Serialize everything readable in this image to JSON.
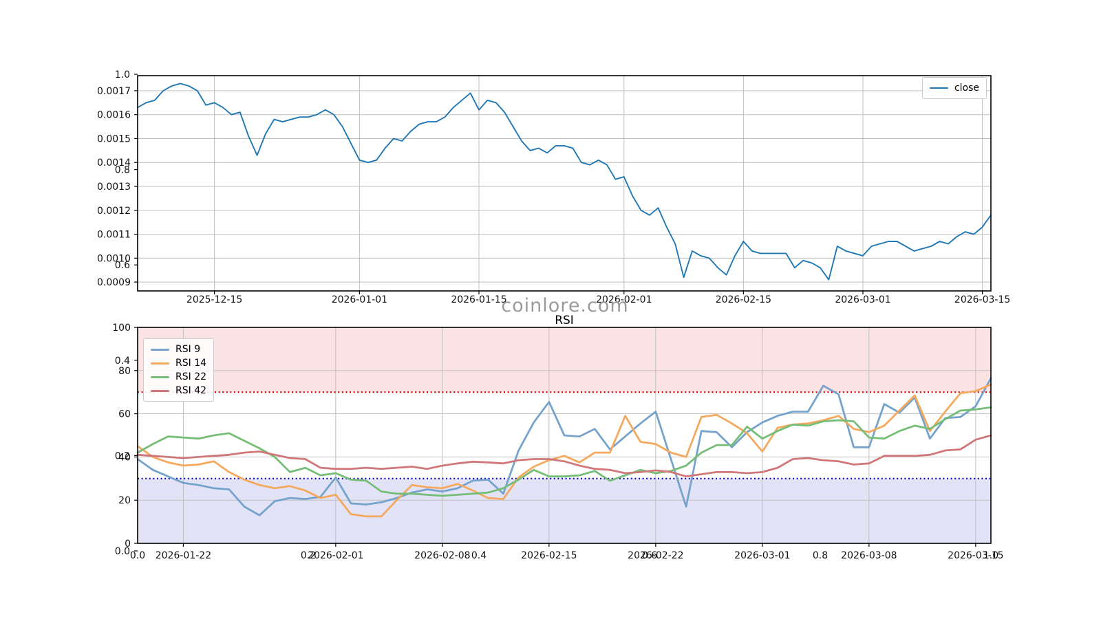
{
  "watermark": "coinlore.com",
  "colors": {
    "close_line": "#1f77b4",
    "rsi9": "#76a3cc",
    "rsi14": "#f4a95e",
    "rsi22": "#76bd77",
    "rsi42": "#d0777a",
    "overbought_dotted": "#d40000",
    "oversold_dotted": "#0000cc",
    "overbought_band": "#fbe3e4",
    "oversold_band": "#e3e3f8",
    "grid": "#bfbfbf"
  },
  "hidden_axis": {
    "x_labels": [
      "0.0",
      "0.2",
      "0.4",
      "0.6",
      "0.8",
      "1.0"
    ],
    "y_labels": [
      "1.0",
      "0.8",
      "0.6",
      "0.4",
      "0.2",
      "0.0"
    ]
  },
  "chart_data": [
    {
      "type": "line",
      "name": "price",
      "title": "",
      "legend_position": "upper right",
      "grid": true,
      "xlim": [
        0,
        100
      ],
      "ylim": [
        0.000863,
        0.001763
      ],
      "x_ticks": [
        {
          "label": "2025-12-15",
          "index": 9
        },
        {
          "label": "2026-01-01",
          "index": 26
        },
        {
          "label": "2026-01-15",
          "index": 40
        },
        {
          "label": "2026-02-01",
          "index": 57
        },
        {
          "label": "2026-02-15",
          "index": 71
        },
        {
          "label": "2026-03-01",
          "index": 85
        },
        {
          "label": "2026-03-15",
          "index": 99
        }
      ],
      "y_ticks": [
        {
          "label": "0.0009",
          "value": 0.0009
        },
        {
          "label": "0.0010",
          "value": 0.001
        },
        {
          "label": "0.0011",
          "value": 0.0011
        },
        {
          "label": "0.0012",
          "value": 0.0012
        },
        {
          "label": "0.0013",
          "value": 0.0013
        },
        {
          "label": "0.0014",
          "value": 0.0014
        },
        {
          "label": "0.0015",
          "value": 0.0015
        },
        {
          "label": "0.0016",
          "value": 0.0016
        },
        {
          "label": "0.0017",
          "value": 0.0017
        }
      ],
      "legend": [
        {
          "label": "close",
          "color": "#1f77b4"
        }
      ],
      "series": [
        {
          "name": "close",
          "data_name": "close-line",
          "color": "#1f77b4",
          "width": 1.9,
          "values": [
            0.00163,
            0.00165,
            0.00166,
            0.0017,
            0.00172,
            0.00173,
            0.00172,
            0.0017,
            0.00164,
            0.00165,
            0.00163,
            0.0016,
            0.00161,
            0.00151,
            0.00143,
            0.00152,
            0.00158,
            0.00157,
            0.00158,
            0.00159,
            0.00159,
            0.0016,
            0.00162,
            0.0016,
            0.00155,
            0.00148,
            0.00141,
            0.0014,
            0.00141,
            0.00146,
            0.0015,
            0.00149,
            0.00153,
            0.00156,
            0.00157,
            0.00157,
            0.00159,
            0.00163,
            0.00166,
            0.00169,
            0.00162,
            0.00166,
            0.00165,
            0.00161,
            0.00155,
            0.00149,
            0.00145,
            0.00146,
            0.00144,
            0.00147,
            0.00147,
            0.00146,
            0.0014,
            0.00139,
            0.00141,
            0.00139,
            0.00133,
            0.00134,
            0.00126,
            0.0012,
            0.00118,
            0.00121,
            0.00113,
            0.00106,
            0.00092,
            0.00103,
            0.00101,
            0.001,
            0.00096,
            0.00093,
            0.00101,
            0.00107,
            0.00103,
            0.00102,
            0.00102,
            0.00102,
            0.00102,
            0.00096,
            0.00099,
            0.00098,
            0.00096,
            0.00091,
            0.00105,
            0.00103,
            0.00102,
            0.00101,
            0.00105,
            0.00106,
            0.00107,
            0.00107,
            0.00105,
            0.00103,
            0.00104,
            0.00105,
            0.00107,
            0.00106,
            0.00109,
            0.00111,
            0.0011,
            0.00113,
            0.00118
          ]
        }
      ]
    },
    {
      "type": "line",
      "name": "rsi",
      "title": "RSI",
      "legend_position": "upper left",
      "grid": true,
      "xlim": [
        0,
        56
      ],
      "ylim": [
        0,
        100
      ],
      "x_ticks": [
        {
          "label": "2026-01-22",
          "index": 3
        },
        {
          "label": "2026-02-01",
          "index": 13
        },
        {
          "label": "2026-02-08",
          "index": 20
        },
        {
          "label": "2026-02-15",
          "index": 27
        },
        {
          "label": "2026-02-22",
          "index": 34
        },
        {
          "label": "2026-03-01",
          "index": 41
        },
        {
          "label": "2026-03-08",
          "index": 48
        },
        {
          "label": "2026-03-15",
          "index": 55
        }
      ],
      "y_ticks": [
        {
          "label": "0",
          "value": 0
        },
        {
          "label": "20",
          "value": 20
        },
        {
          "label": "40",
          "value": 40
        },
        {
          "label": "60",
          "value": 60
        },
        {
          "label": "80",
          "value": 80
        },
        {
          "label": "100",
          "value": 100
        }
      ],
      "bands": [
        {
          "from": 70,
          "to": 100,
          "color": "#fbe3e4",
          "name": "overbought-band"
        },
        {
          "from": 0,
          "to": 30,
          "color": "#e3e3f8",
          "name": "oversold-band"
        }
      ],
      "hlines": [
        {
          "value": 70,
          "color": "#d40000",
          "name": "overbought-threshold-line"
        },
        {
          "value": 30,
          "color": "#0000cc",
          "name": "oversold-threshold-line"
        }
      ],
      "series": [
        {
          "name": "RSI 9",
          "data_name": "rsi-9-line",
          "color": "#76a3cc",
          "width": 2.8,
          "values": [
            39,
            34,
            31,
            28,
            27,
            25.5,
            25,
            17,
            13,
            19.5,
            21,
            20.5,
            21.5,
            30.5,
            18.5,
            18,
            19,
            21,
            23.5,
            25,
            24,
            25.5,
            29,
            29.5,
            23,
            43,
            56,
            65.5,
            50,
            49.5,
            53,
            43.5,
            49.5,
            55.5,
            61,
            39,
            17,
            52,
            51.5,
            44.5,
            51.5,
            56,
            59,
            61,
            61,
            73,
            69,
            44.5,
            44.5,
            64.5,
            60.5,
            67.5,
            48.5,
            58,
            58.5,
            63.5,
            76.5
          ]
        },
        {
          "name": "RSI 14",
          "data_name": "rsi-14-line",
          "color": "#f4a95e",
          "width": 2.8,
          "values": [
            45,
            40,
            37.5,
            36,
            36.5,
            38,
            33,
            29.5,
            27,
            25.5,
            26.5,
            24.5,
            21,
            22.5,
            13.5,
            12.5,
            12.5,
            20,
            27,
            26,
            25.5,
            27.5,
            24.5,
            21,
            20.5,
            30.5,
            35.5,
            38.5,
            40.5,
            37.5,
            42,
            42,
            59,
            47,
            46,
            42,
            40,
            58.5,
            59.5,
            55.5,
            51,
            42.5,
            53.5,
            55,
            55.5,
            57,
            59,
            53,
            51.5,
            54.5,
            61.5,
            68.5,
            52,
            61,
            69.5,
            70.5,
            73.5
          ]
        },
        {
          "name": "RSI 22",
          "data_name": "rsi-22-line",
          "color": "#76bd77",
          "width": 2.8,
          "values": [
            42,
            46,
            49.5,
            49,
            48.5,
            50,
            51,
            47.5,
            44,
            40,
            33,
            35,
            31.5,
            32.5,
            29.5,
            29,
            24,
            23,
            23,
            22.5,
            22,
            22.5,
            23,
            23.5,
            25.5,
            29.5,
            34,
            31,
            31,
            31.5,
            33.5,
            29,
            31.5,
            34,
            32.5,
            33.5,
            36,
            42,
            45.5,
            45.5,
            54,
            48.5,
            52,
            55,
            54.5,
            56.5,
            57,
            56.5,
            49,
            48.5,
            52,
            54.5,
            53,
            57.5,
            61.5,
            62,
            63
          ]
        },
        {
          "name": "RSI 42",
          "data_name": "rsi-42-line",
          "color": "#d0777a",
          "width": 2.8,
          "values": [
            41,
            40.5,
            40,
            39.5,
            40,
            40.5,
            41,
            42,
            42.5,
            41,
            39.5,
            39,
            35,
            34.5,
            34.5,
            35,
            34.5,
            35,
            35.5,
            34.5,
            36,
            37,
            37.8,
            37.5,
            37,
            38.5,
            39,
            39,
            38,
            36,
            34.5,
            34,
            32.5,
            33,
            33.8,
            33,
            31,
            32,
            33,
            33,
            32.5,
            33,
            35,
            39,
            39.5,
            38.5,
            38,
            36.5,
            37,
            40.5,
            40.5,
            40.5,
            41,
            43,
            43.5,
            48,
            50
          ]
        }
      ]
    }
  ]
}
